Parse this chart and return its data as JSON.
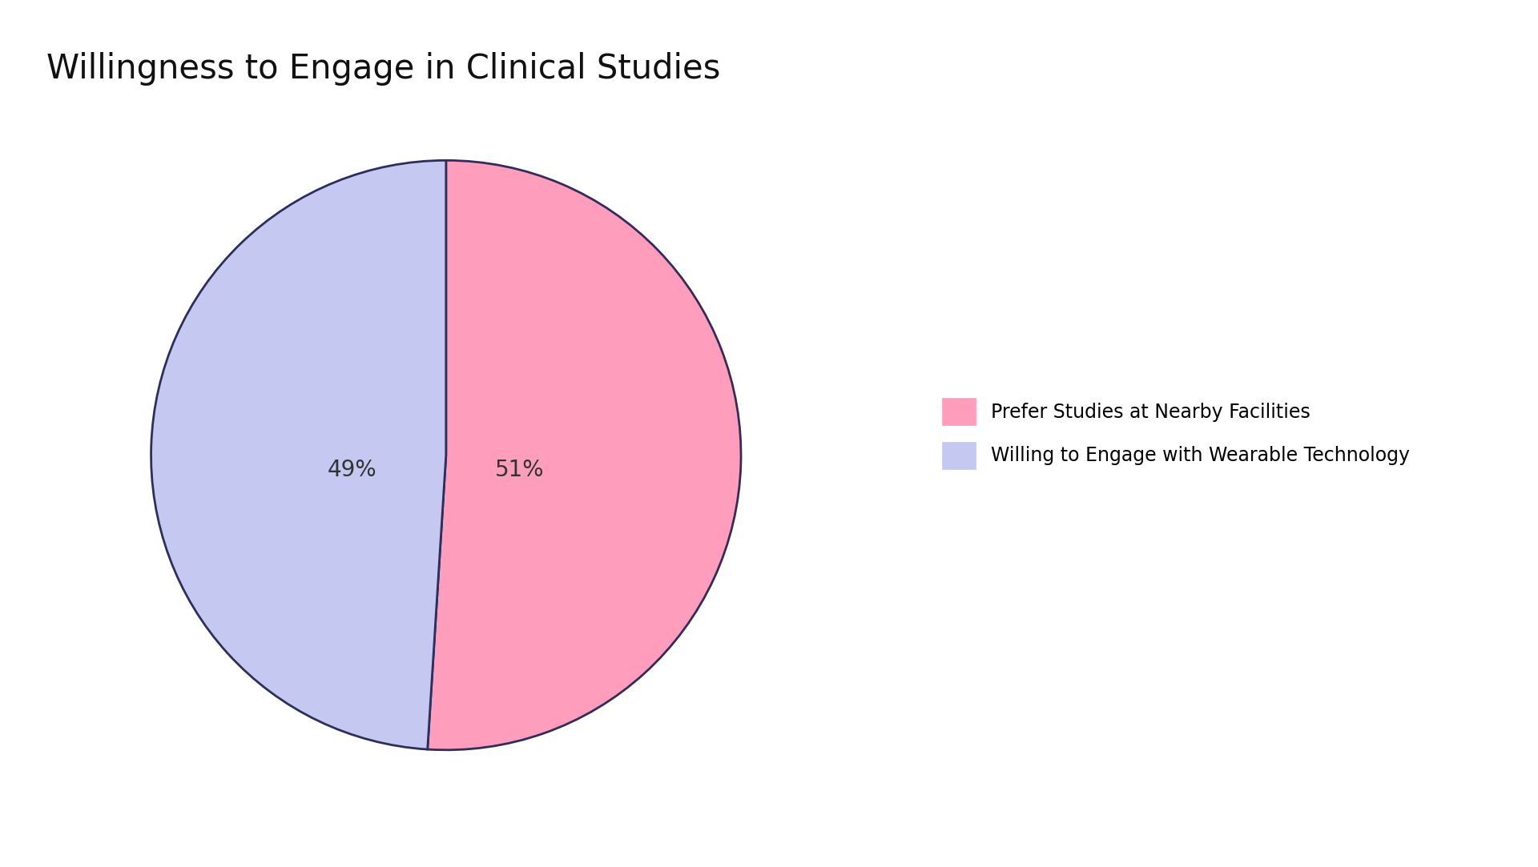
{
  "title": "Willingness to Engage in Clinical Studies",
  "slices": [
    51,
    49
  ],
  "labels": [
    "Prefer Studies at Nearby Facilities",
    "Willing to Engage with Wearable Technology"
  ],
  "colors": [
    "#FF9EBC",
    "#C5C8F0"
  ],
  "edge_color": "#2e2e5e",
  "edge_width": 2.0,
  "pct_labels": [
    "51%",
    "49%"
  ],
  "pct_fontsize": 20,
  "title_fontsize": 30,
  "title_color": "#111111",
  "background_color": "#ffffff",
  "legend_fontsize": 17,
  "startangle": 90
}
